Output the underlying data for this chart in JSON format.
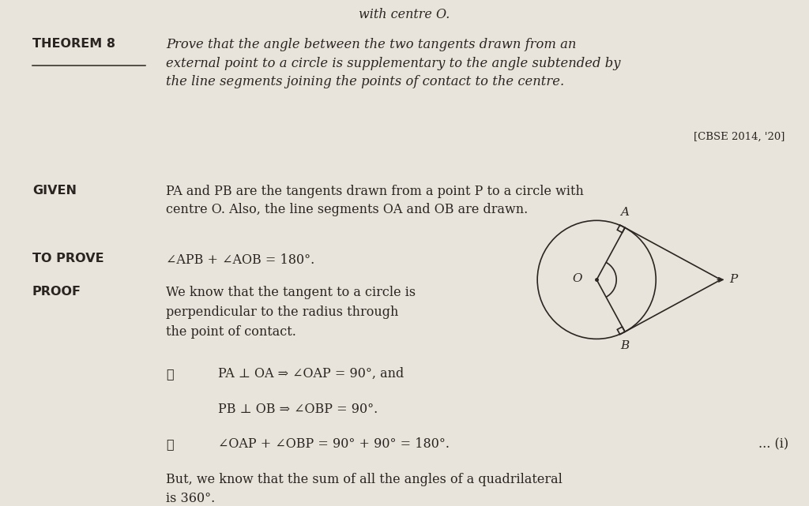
{
  "bg_color": "#e8e4dc",
  "fig_width": 10.24,
  "fig_height": 6.41,
  "theorem_label": "THEOREM 8",
  "theorem_text": "Prove that the angle between the two tangents drawn from an\nexternal point to a circle is supplementary to the angle subtended by\nthe line segments joining the points of contact to the centre.",
  "cbse_ref": "[CBSE 2014, '20]",
  "given_label": "GIVEN",
  "given_text": "PA and PB are the tangents drawn from a point P to a circle with\ncentre O. Also, the line segments OA and OB are drawn.",
  "toprove_label": "TO PROVE",
  "toprove_text": "∠APB + ∠AOB = 180°.",
  "proof_label": "PROOF",
  "proof_text1": "We know that the tangent to a circle is\nperpendicular to the radius through\nthe point of contact.",
  "proof_line1": "PA ⊥ OA ⇒ ∠OAP = 90°, and",
  "proof_line2": "PB ⊥ OB ⇒ ∠OBP = 90°.",
  "proof_line3": "∠OAP + ∠OBP = 90° + 90° = 180°.",
  "proof_eq_ref": "... (i)",
  "proof_final": "But, we know that the sum of all the angles of a quadrilateral\nis 360°.",
  "text_color": "#2a2520",
  "line_color": "#2a2520"
}
